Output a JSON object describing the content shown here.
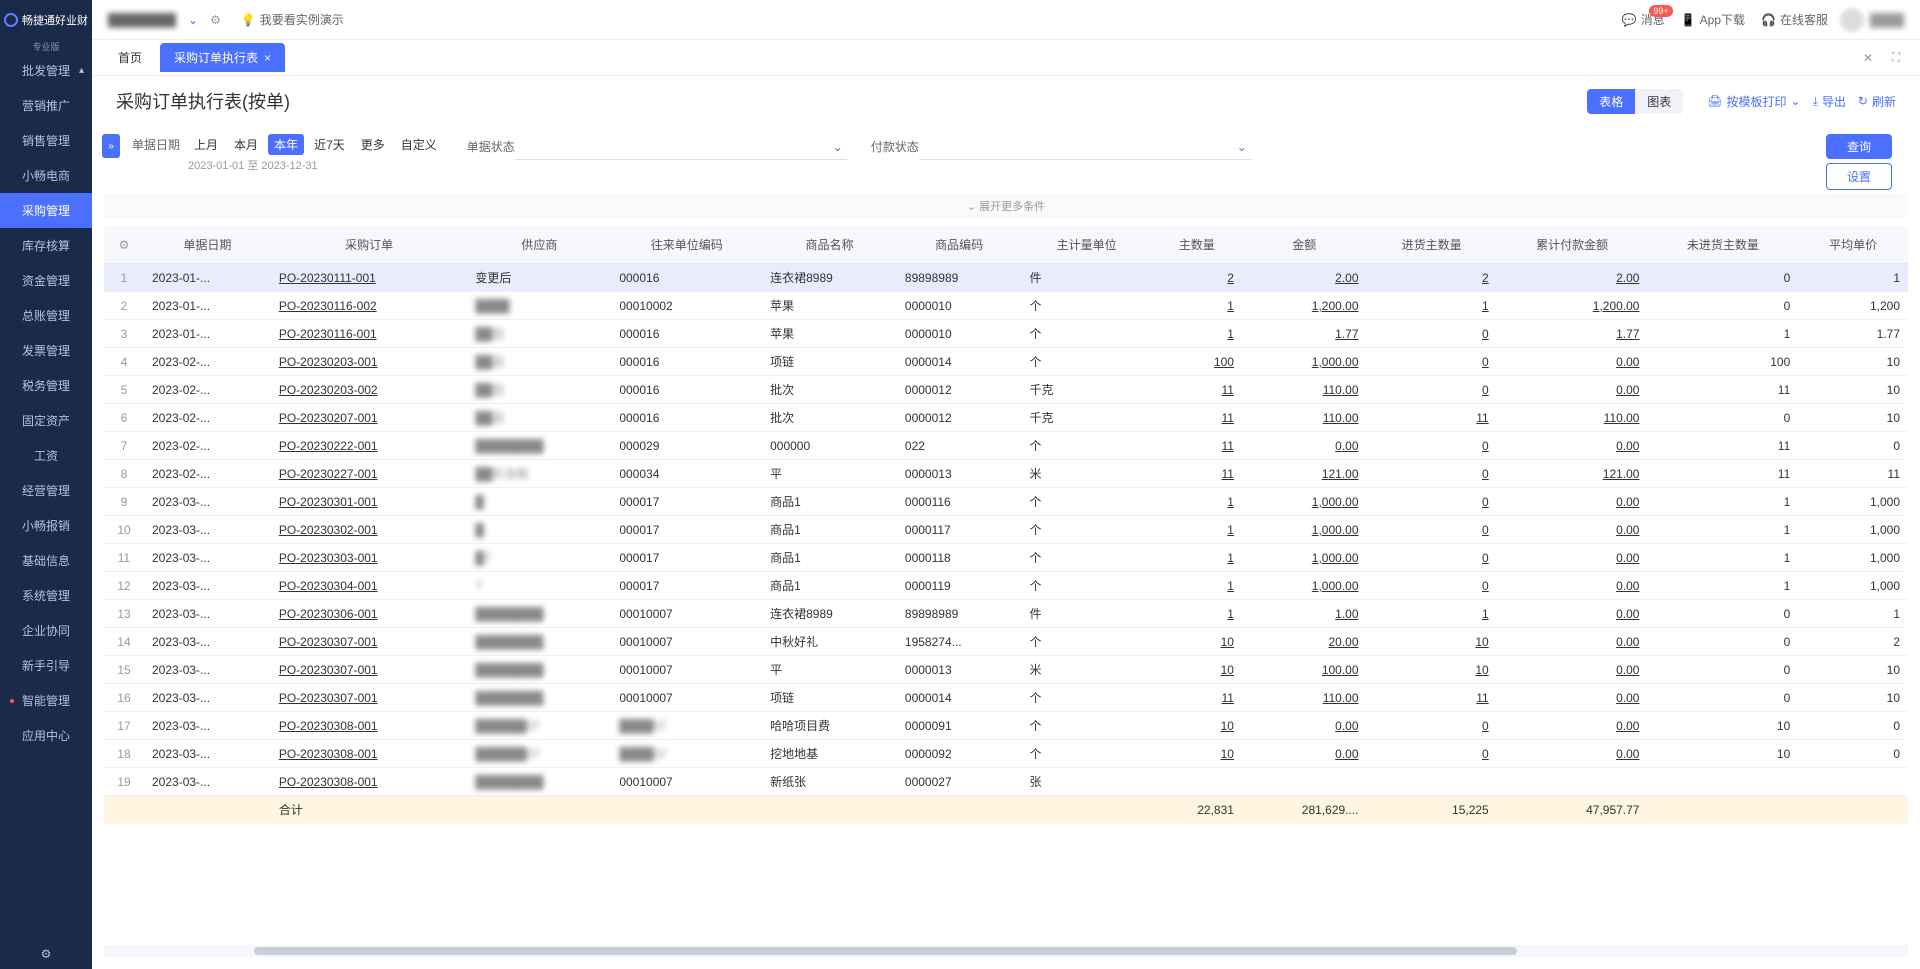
{
  "brand": {
    "name": "畅捷通好业财",
    "edition": "专业版"
  },
  "topbar": {
    "company": "████████",
    "demo": "我要看实例演示",
    "msg": "消息",
    "msg_badge": "99+",
    "app": "App下载",
    "service": "在线客服",
    "username": "████"
  },
  "sidebar": {
    "items": [
      {
        "label": "批发管理",
        "expanded": true
      },
      {
        "label": "营销推广"
      },
      {
        "label": "销售管理"
      },
      {
        "label": "小畅电商"
      },
      {
        "label": "采购管理",
        "active": true
      },
      {
        "label": "库存核算"
      },
      {
        "label": "资金管理"
      },
      {
        "label": "总账管理"
      },
      {
        "label": "发票管理"
      },
      {
        "label": "税务管理"
      },
      {
        "label": "固定资产"
      },
      {
        "label": "工资"
      },
      {
        "label": "经营管理"
      },
      {
        "label": "小畅报销"
      },
      {
        "label": "基础信息"
      },
      {
        "label": "系统管理"
      },
      {
        "label": "企业协同"
      },
      {
        "label": "新手引导"
      },
      {
        "label": "智能管理",
        "dot": true
      },
      {
        "label": "应用中心"
      }
    ]
  },
  "tabs": {
    "home": "首页",
    "current": "采购订单执行表"
  },
  "page": {
    "title": "采购订单执行表(按单)",
    "view_table": "表格",
    "view_chart": "图表",
    "print": "按模板打印",
    "export": "导出",
    "refresh": "刷新"
  },
  "filters": {
    "date_label": "单据日期",
    "chips": [
      "上月",
      "本月",
      "本年",
      "近7天",
      "更多",
      "自定义"
    ],
    "chip_active": 2,
    "date_range": "2023-01-01 至 2023-12-31",
    "status_label": "单据状态",
    "pay_label": "付款状态",
    "query": "查询",
    "settings": "设置",
    "expand": "展开更多条件"
  },
  "table": {
    "columns": [
      "",
      "单据日期",
      "采购订单",
      "供应商",
      "往来单位编码",
      "商品名称",
      "商品编码",
      "主计量单位",
      "主数量",
      "金额",
      "进货主数量",
      "累计付款金额",
      "未进货主数量",
      "平均单价"
    ],
    "rows": [
      {
        "i": 1,
        "date": "2023-01-...",
        "po": "PO-20230111-001",
        "sup": "变更后",
        "supblur": 0,
        "code": "000016",
        "prod": "连衣裙8989",
        "pcode": "89898989",
        "unit": "件",
        "qty": "2",
        "amt": "2.00",
        "inq": "2",
        "paid": "2.00",
        "left": "0",
        "avg": "1",
        "hl": 1
      },
      {
        "i": 2,
        "date": "2023-01-...",
        "po": "PO-20230116-002",
        "sup": "████",
        "supblur": 1,
        "code": "00010002",
        "prod": "苹果",
        "pcode": "0000010",
        "unit": "个",
        "qty": "1",
        "amt": "1,200.00",
        "inq": "1",
        "paid": "1,200.00",
        "left": "0",
        "avg": "1,200"
      },
      {
        "i": 3,
        "date": "2023-01-...",
        "po": "PO-20230116-001",
        "sup": "██后",
        "supblur": 1,
        "code": "000016",
        "prod": "苹果",
        "pcode": "0000010",
        "unit": "个",
        "qty": "1",
        "amt": "1.77",
        "inq": "0",
        "paid": "1.77",
        "left": "1",
        "avg": "1.77"
      },
      {
        "i": 4,
        "date": "2023-02-...",
        "po": "PO-20230203-001",
        "sup": "██后",
        "supblur": 1,
        "code": "000016",
        "prod": "项链",
        "pcode": "0000014",
        "unit": "个",
        "qty": "100",
        "amt": "1,000.00",
        "inq": "0",
        "paid": "0.00",
        "left": "100",
        "avg": "10"
      },
      {
        "i": 5,
        "date": "2023-02-...",
        "po": "PO-20230203-002",
        "sup": "██后",
        "supblur": 1,
        "code": "000016",
        "prod": "批次",
        "pcode": "0000012",
        "unit": "千克",
        "qty": "11",
        "amt": "110.00",
        "inq": "0",
        "paid": "0.00",
        "left": "11",
        "avg": "10"
      },
      {
        "i": 6,
        "date": "2023-02-...",
        "po": "PO-20230207-001",
        "sup": "██后",
        "supblur": 1,
        "code": "000016",
        "prod": "批次",
        "pcode": "0000012",
        "unit": "千克",
        "qty": "11",
        "amt": "110.00",
        "inq": "11",
        "paid": "110.00",
        "left": "0",
        "avg": "10"
      },
      {
        "i": 7,
        "date": "2023-02-...",
        "po": "PO-20230222-001",
        "sup": "████████",
        "supblur": 1,
        "code": "000029",
        "prod": "000000",
        "pcode": "022",
        "unit": "个",
        "qty": "11",
        "amt": "0.00",
        "inq": "0",
        "paid": "0.00",
        "left": "11",
        "avg": "0"
      },
      {
        "i": 8,
        "date": "2023-02-...",
        "po": "PO-20230227-001",
        "sup": "██价含税",
        "supblur": 1,
        "code": "000034",
        "prod": "平",
        "pcode": "0000013",
        "unit": "米",
        "qty": "11",
        "amt": "121.00",
        "inq": "0",
        "paid": "121.00",
        "left": "11",
        "avg": "11"
      },
      {
        "i": 9,
        "date": "2023-03-...",
        "po": "PO-20230301-001",
        "sup": "█",
        "supblur": 1,
        "code": "000017",
        "prod": "商品1",
        "pcode": "0000116",
        "unit": "个",
        "qty": "1",
        "amt": "1,000.00",
        "inq": "0",
        "paid": "0.00",
        "left": "1",
        "avg": "1,000"
      },
      {
        "i": 10,
        "date": "2023-03-...",
        "po": "PO-20230302-001",
        "sup": "█",
        "supblur": 1,
        "code": "000017",
        "prod": "商品1",
        "pcode": "0000117",
        "unit": "个",
        "qty": "1",
        "amt": "1,000.00",
        "inq": "0",
        "paid": "0.00",
        "left": "1",
        "avg": "1,000"
      },
      {
        "i": 11,
        "date": "2023-03-...",
        "po": "PO-20230303-001",
        "sup": "█T",
        "supblur": 1,
        "code": "000017",
        "prod": "商品1",
        "pcode": "0000118",
        "unit": "个",
        "qty": "1",
        "amt": "1,000.00",
        "inq": "0",
        "paid": "0.00",
        "left": "1",
        "avg": "1,000"
      },
      {
        "i": 12,
        "date": "2023-03-...",
        "po": "PO-20230304-001",
        "sup": "T",
        "supblur": 1,
        "code": "000017",
        "prod": "商品1",
        "pcode": "0000119",
        "unit": "个",
        "qty": "1",
        "amt": "1,000.00",
        "inq": "0",
        "paid": "0.00",
        "left": "1",
        "avg": "1,000"
      },
      {
        "i": 13,
        "date": "2023-03-...",
        "po": "PO-20230306-001",
        "sup": "████████",
        "supblur": 1,
        "code": "00010007",
        "prod": "连衣裙8989",
        "pcode": "89898989",
        "unit": "件",
        "qty": "1",
        "amt": "1.00",
        "inq": "1",
        "paid": "0.00",
        "left": "0",
        "avg": "1"
      },
      {
        "i": 14,
        "date": "2023-03-...",
        "po": "PO-20230307-001",
        "sup": "████████",
        "supblur": 1,
        "code": "00010007",
        "prod": "中秋好礼",
        "pcode": "1958274...",
        "unit": "个",
        "qty": "10",
        "amt": "20.00",
        "inq": "10",
        "paid": "0.00",
        "left": "0",
        "avg": "2"
      },
      {
        "i": 15,
        "date": "2023-03-...",
        "po": "PO-20230307-001",
        "sup": "████████",
        "supblur": 1,
        "code": "00010007",
        "prod": "平",
        "pcode": "0000013",
        "unit": "米",
        "qty": "10",
        "amt": "100.00",
        "inq": "10",
        "paid": "0.00",
        "left": "0",
        "avg": "10"
      },
      {
        "i": 16,
        "date": "2023-03-...",
        "po": "PO-20230307-001",
        "sup": "████████",
        "supblur": 1,
        "code": "00010007",
        "prod": "项链",
        "pcode": "0000014",
        "unit": "个",
        "qty": "11",
        "amt": "110.00",
        "inq": "11",
        "paid": "0.00",
        "left": "0",
        "avg": "10"
      },
      {
        "i": 17,
        "date": "2023-03-...",
        "po": "PO-20230308-001",
        "sup": "██████07",
        "supblur": 1,
        "code": "████07",
        "prod": "哈哈项目费",
        "pcode": "0000091",
        "unit": "个",
        "qty": "10",
        "amt": "0.00",
        "inq": "0",
        "paid": "0.00",
        "left": "10",
        "avg": "0"
      },
      {
        "i": 18,
        "date": "2023-03-...",
        "po": "PO-20230308-001",
        "sup": "██████07",
        "supblur": 1,
        "code": "████07",
        "prod": "挖地地基",
        "pcode": "0000092",
        "unit": "个",
        "qty": "10",
        "amt": "0.00",
        "inq": "0",
        "paid": "0.00",
        "left": "10",
        "avg": "0"
      },
      {
        "i": 19,
        "date": "2023-03-...",
        "po": "PO-20230308-001",
        "sup": "████████",
        "supblur": 1,
        "code": "00010007",
        "prod": "新纸张",
        "pcode": "0000027",
        "unit": "张",
        "qty": "",
        "amt": "",
        "inq": "",
        "paid": "",
        "left": "",
        "avg": ""
      }
    ],
    "totals": {
      "label": "合计",
      "qty": "22,831",
      "amt": "281,629....",
      "inq": "15,225",
      "paid": "47,957.77"
    }
  }
}
